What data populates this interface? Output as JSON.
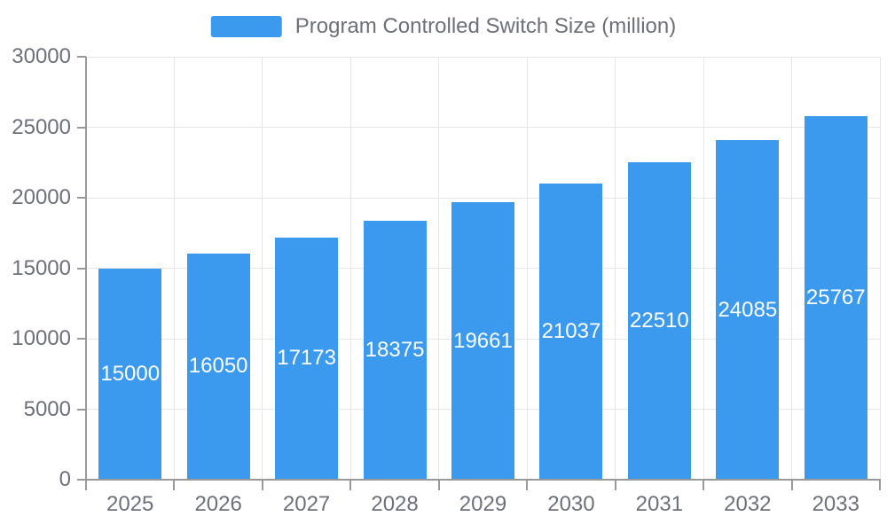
{
  "chart_data": {
    "type": "bar",
    "title": "Program Controlled Switch Size (million)",
    "legend": [
      "Program Controlled Switch Size (million)"
    ],
    "legend_position": "top-center",
    "categories": [
      "2025",
      "2026",
      "2027",
      "2028",
      "2029",
      "2030",
      "2031",
      "2032",
      "2033"
    ],
    "series": [
      {
        "name": "Program Controlled Switch Size (million)",
        "values": [
          15000,
          16050,
          17173,
          18375,
          19661,
          21037,
          22510,
          24085,
          25767
        ]
      }
    ],
    "xlabel": "",
    "ylabel": "",
    "ylim": [
      0,
      30000
    ],
    "yticks": [
      0,
      5000,
      10000,
      15000,
      20000,
      25000,
      30000
    ],
    "grid": true,
    "grid_vertical": true,
    "value_label_position": "inside-center",
    "colors": {
      "bar": "#3B99EE",
      "gridline": "#E6E6E6",
      "axis_line": "#999999",
      "axis_text": "#6E7079",
      "value_label": "#FFFFFF",
      "background": "#FFFFFF"
    }
  }
}
